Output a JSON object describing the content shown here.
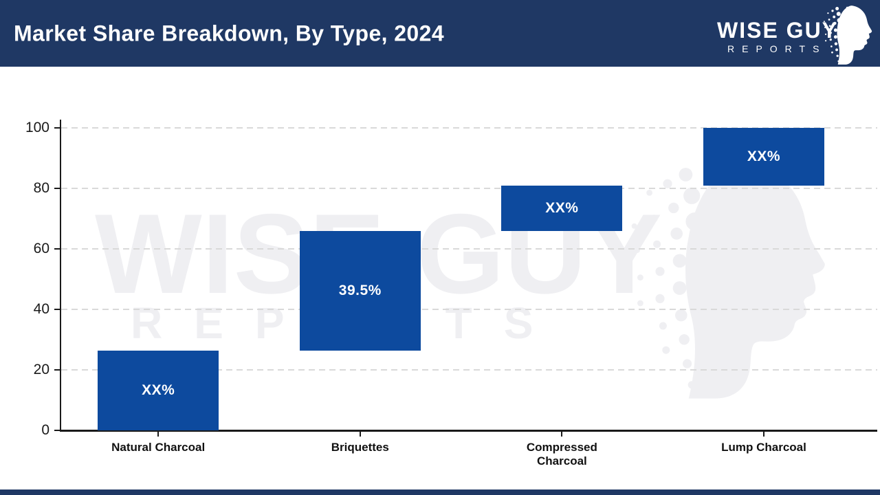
{
  "header": {
    "title": "Market Share Breakdown, By Type, 2024",
    "logo": {
      "line1": "WISE GUY",
      "line2": "REPORTS"
    }
  },
  "watermark": {
    "line1": "WISE GUY",
    "line2": "REPORTS"
  },
  "chart_data": {
    "type": "bar",
    "subtype": "floating-waterfall",
    "title": "Market Share Breakdown, By Type, 2024",
    "categories": [
      "Natural Charcoal",
      "Briquettes",
      "Compressed Charcoal",
      "Lump Charcoal"
    ],
    "bars": [
      {
        "category": "Natural Charcoal",
        "tick_label_display": "Natural Charcoal",
        "start": 0,
        "end": 26.4,
        "value_label": "XX%"
      },
      {
        "category": "Briquettes",
        "tick_label_display": "Briquettes",
        "start": 26.4,
        "end": 65.9,
        "value_label": "39.5%"
      },
      {
        "category": "Compressed Charcoal",
        "tick_label_display": "Compressed\nCharcoal",
        "start": 65.9,
        "end": 80.8,
        "value_label": "XX%"
      },
      {
        "category": "Lump Charcoal",
        "tick_label_display": "Lump Charcoal",
        "start": 80.8,
        "end": 100,
        "value_label": "XX%"
      }
    ],
    "y_ticks": [
      0,
      20,
      40,
      60,
      80,
      100
    ],
    "ylim": [
      0,
      102.7
    ],
    "grid": "horizontal-dashed",
    "legend": "none",
    "bar_color": "#0d4a9e",
    "value_label_color": "#ffffff"
  },
  "colors": {
    "header_bg": "#1f3864",
    "footer_bg": "#1f3864",
    "chart_bg": "#ffffff",
    "bar": "#0d4a9e",
    "gridline": "#d9d9d9",
    "axis": "#1a1a1a",
    "watermark": "#efeff2",
    "title_text": "#ffffff"
  }
}
